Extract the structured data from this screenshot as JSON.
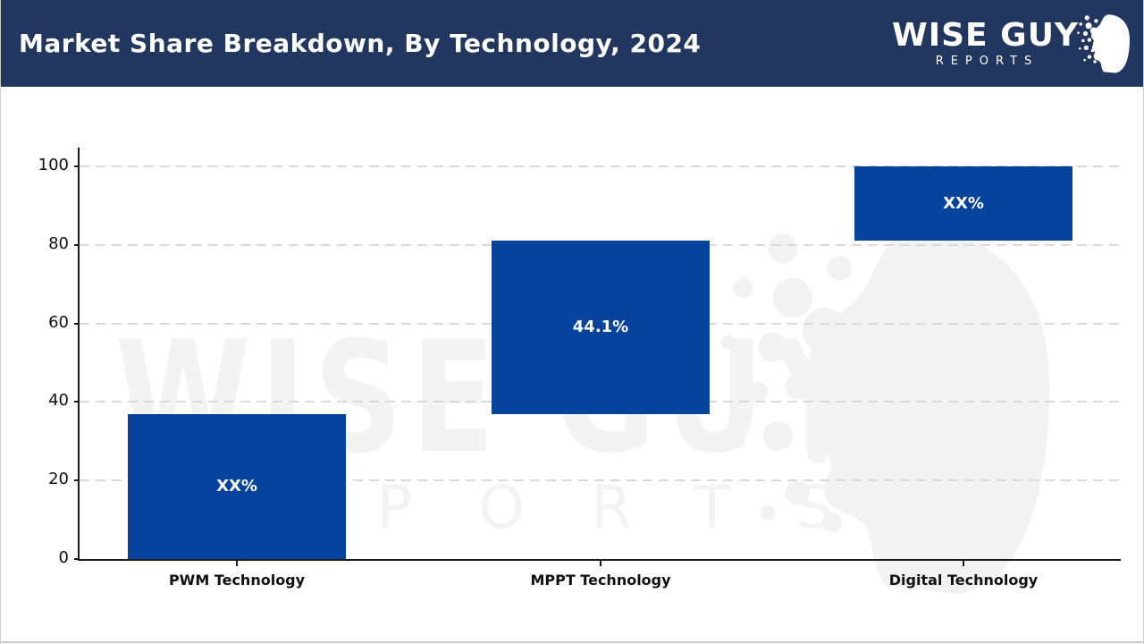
{
  "header": {
    "title": "Market Share Breakdown, By Technology, 2024",
    "logo": {
      "name": "WISE GUY",
      "tagline": "REPORTS"
    }
  },
  "watermark": {
    "name": "WISE GUY",
    "tagline": "REPORTS"
  },
  "chart_data": {
    "type": "bar",
    "subtype": "floating-segment-breakdown (waterfall style, segments stack to 100%)",
    "title": "Market Share Breakdown, By Technology, 2024",
    "categories": [
      "PWM Technology",
      "MPPT Technology",
      "Digital Technology"
    ],
    "bars": [
      {
        "category": "PWM Technology",
        "start": 0,
        "end": 37,
        "height": 37,
        "label": "XX%"
      },
      {
        "category": "MPPT Technology",
        "start": 37,
        "end": 81.1,
        "height": 44.1,
        "label": "44.1%"
      },
      {
        "category": "Digital Technology",
        "start": 81.1,
        "end": 100,
        "height": 18.9,
        "label": "XX%"
      }
    ],
    "yticks": [
      0,
      20,
      40,
      60,
      80,
      100
    ],
    "ylim": [
      0,
      104.8
    ],
    "xlabel": "",
    "ylabel": "",
    "grid": "horizontal-dashed",
    "legend_position": "none",
    "bar_color": "#05439c",
    "bar_label_color": "#ffffff"
  },
  "colors": {
    "header_bg": "#21375f",
    "page_bg": "#ffffff",
    "axis": "#1c1c1c",
    "gridline": "#d9d9d9",
    "tick_label": "#111111",
    "watermark": "#f3f3f3",
    "edge_border": "#cfcfcf"
  }
}
